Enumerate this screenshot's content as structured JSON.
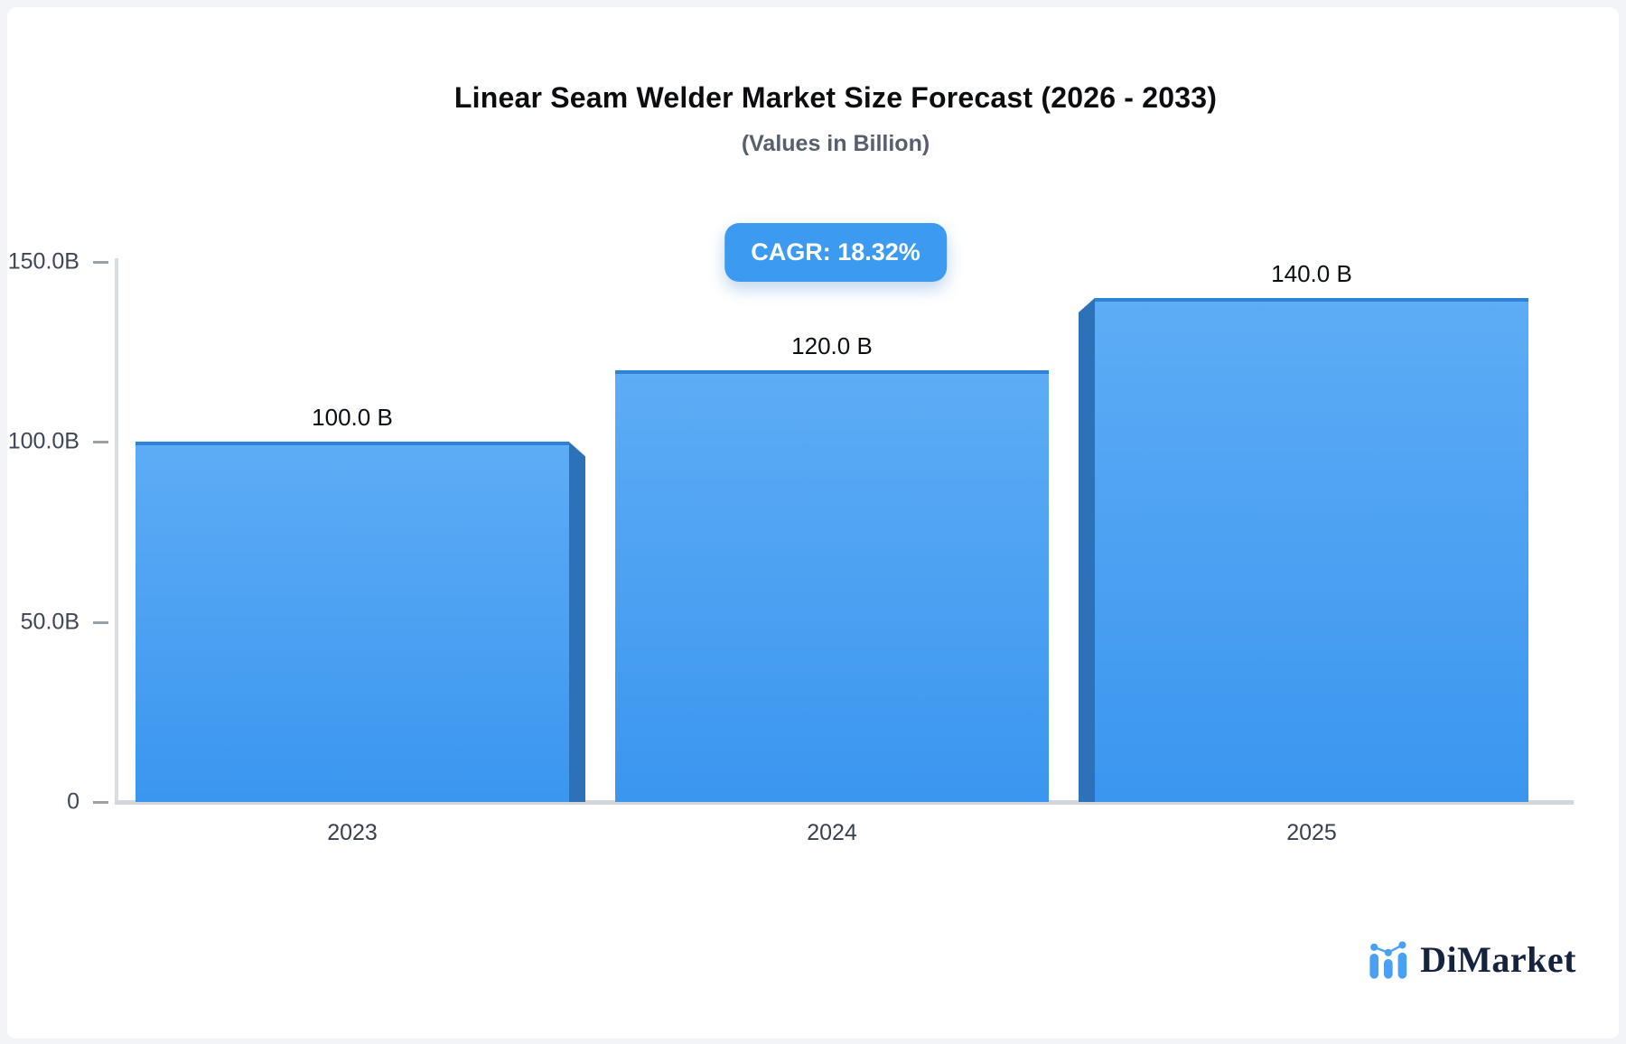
{
  "header": {
    "title": "Linear Seam Welder Market Size Forecast (2026 - 2033)",
    "subtitle": "(Values in Billion)",
    "cagr_badge": "CAGR: 18.32%"
  },
  "chart_data": {
    "type": "bar",
    "title": "Linear Seam Welder Market Size Forecast (2026 - 2033)",
    "subtitle": "(Values in Billion)",
    "unit": "Billion",
    "categories": [
      "2023",
      "2024",
      "2025"
    ],
    "values": [
      100.0,
      120.0,
      140.0
    ],
    "value_labels": [
      "100.0 B",
      "120.0 B",
      "140.0 B"
    ],
    "cagr_percent": 18.32,
    "ylim": [
      0,
      150
    ],
    "y_ticks": [
      {
        "value": 150,
        "label": "150.0B"
      },
      {
        "value": 100,
        "label": "100.0B"
      },
      {
        "value": 50,
        "label": "50.0B"
      },
      {
        "value": 0,
        "label": "0"
      }
    ],
    "grid": "off",
    "legend": "none",
    "bar_gradient_top": "#5dacf5",
    "bar_gradient_bottom": "#3b96ef",
    "bar_side_color": "#2d72b8",
    "bar_top_edge_color": "#2f83d6"
  },
  "colors": {
    "accent": "#3c9bf1",
    "axis_line": "#d8dbe0",
    "axis_label": "#3f4756",
    "card_background": "#ffffff",
    "page_background": "#f2f4f7"
  },
  "branding": {
    "logo_text": "DiMarket",
    "logo_icon": "bar-line-chart-icon",
    "logo_icon_color": "#4aa0f5",
    "logo_text_color": "#14233f"
  }
}
